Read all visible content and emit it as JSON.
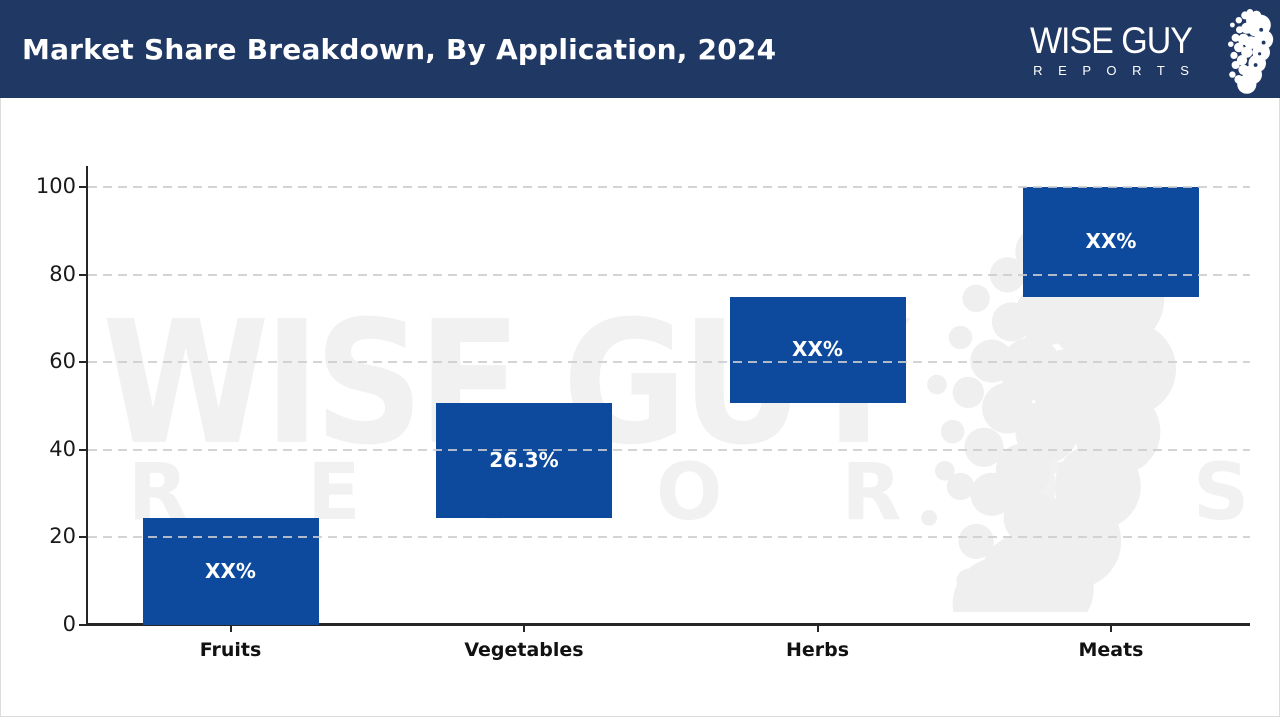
{
  "header": {
    "title": "Market Share Breakdown, By Application, 2024",
    "logo": {
      "wordmark": "WISE GUY",
      "subtext": "R E P O R T S"
    }
  },
  "watermark": {
    "wordmark": "WISE GUY",
    "subtext": "R E P O R T S"
  },
  "chart_data": {
    "type": "bar",
    "subtype": "floating-segment-waterfall",
    "title": "Market Share Breakdown, By Application, 2024",
    "categories": [
      "Fruits",
      "Vegetables",
      "Herbs",
      "Meats"
    ],
    "bars": [
      {
        "category": "Fruits",
        "start": 0,
        "end": 24.4,
        "label": "XX%"
      },
      {
        "category": "Vegetables",
        "start": 24.4,
        "end": 50.7,
        "label": "26.3%"
      },
      {
        "category": "Herbs",
        "start": 50.7,
        "end": 74.8,
        "label": "XX%"
      },
      {
        "category": "Meats",
        "start": 74.8,
        "end": 100,
        "label": "XX%"
      }
    ],
    "xlabel": "",
    "ylabel": "",
    "yticks": [
      0,
      20,
      40,
      60,
      80,
      100
    ],
    "ylim": [
      0,
      104
    ],
    "grid": "horizontal-dashed",
    "legend": "none",
    "colors": {
      "bar": "#0d4a9e",
      "bar_label": "#ffffff",
      "header_bg": "#203864",
      "grid": "#d9d9d9",
      "axis": "#262626",
      "tick_label": "#1a1a1a",
      "watermark": "#f1f1f1"
    }
  }
}
